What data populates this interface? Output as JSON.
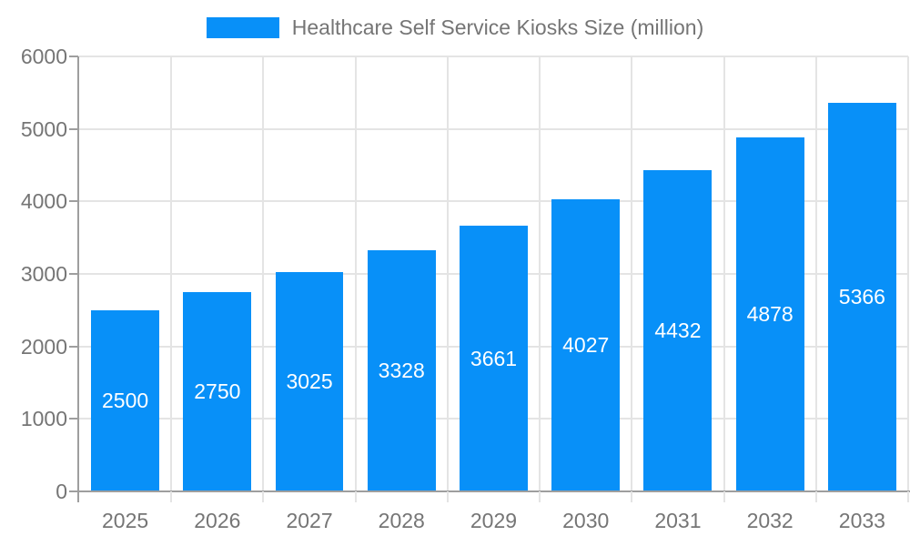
{
  "chart_data": {
    "type": "bar",
    "title": "Healthcare Self Service Kiosks Size (million)",
    "legend": {
      "label": "Healthcare Self Service Kiosks Size (million)",
      "position": "top"
    },
    "categories": [
      "2025",
      "2026",
      "2027",
      "2028",
      "2029",
      "2030",
      "2031",
      "2032",
      "2033"
    ],
    "series": [
      {
        "name": "Healthcare Self Service Kiosks Size (million)",
        "values": [
          2500,
          2750,
          3025,
          3328,
          3661,
          4027,
          4432,
          4878,
          5366
        ]
      }
    ],
    "xlabel": "",
    "ylabel": "",
    "ylim": [
      0,
      6000
    ],
    "yticks": [
      0,
      1000,
      2000,
      3000,
      4000,
      5000,
      6000
    ],
    "grid": true,
    "value_label_position": "inside-center",
    "colors": {
      "bar": "#0890f8",
      "grid": "#e4e4e4",
      "axis": "#9e9e9e",
      "tick_label": "#757575",
      "legend_text": "#757575",
      "value_label": "#ffffff",
      "background": "#ffffff"
    }
  }
}
